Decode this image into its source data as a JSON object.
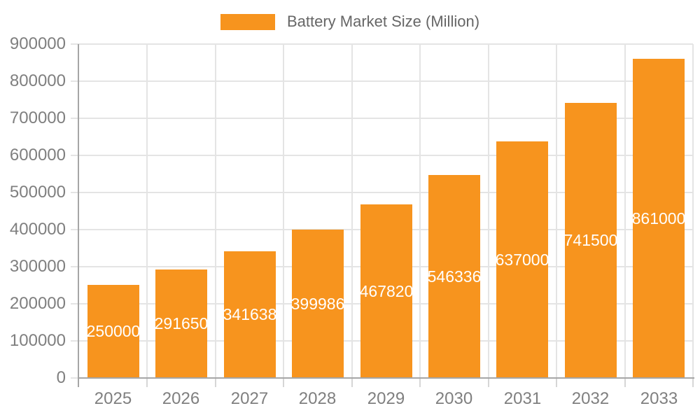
{
  "chart_data": {
    "type": "bar",
    "title": "Battery Market Size (Million)",
    "legend": [
      "Battery Market Size (Million)"
    ],
    "legend_position": "top",
    "categories": [
      "2025",
      "2026",
      "2027",
      "2028",
      "2029",
      "2030",
      "2031",
      "2032",
      "2033"
    ],
    "values": [
      250000,
      291650,
      341638,
      399986,
      467820,
      546336,
      637000,
      741500,
      861000
    ],
    "data_labels": "inside-center-white",
    "xlabel": "",
    "ylabel": "",
    "ylim": [
      0,
      900000
    ],
    "ytick_interval": 100000,
    "ytick_labels": [
      "0",
      "100000",
      "200000",
      "300000",
      "400000",
      "500000",
      "600000",
      "700000",
      "800000",
      "900000"
    ],
    "grid": "horizontal-and-vertical"
  },
  "colors": {
    "bar": "#F7941E",
    "bar_label_text": "#FFFFFF",
    "axis_line": "#A6A6A6",
    "gridline": "#E4E4E4",
    "x_tick": "#D6D6D6",
    "tick_label": "#7F7F7F",
    "legend_text": "#666666",
    "background": "#FFFFFF"
  }
}
